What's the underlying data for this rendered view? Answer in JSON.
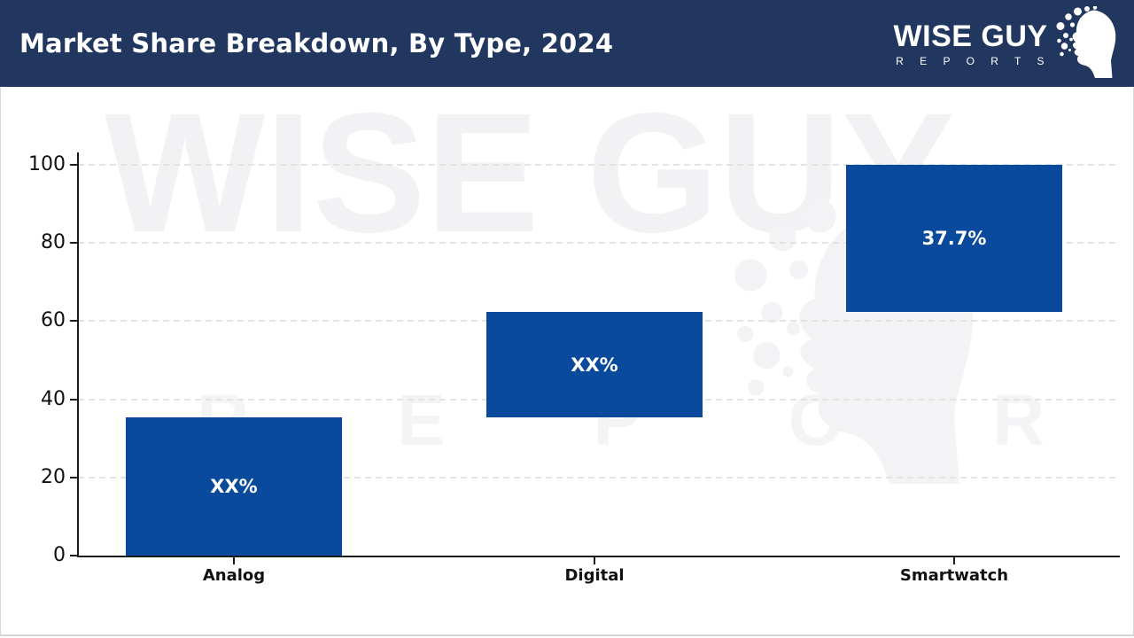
{
  "header": {
    "title": "Market Share Breakdown, By Type, 2024",
    "logo": {
      "name": "WISE GUY",
      "sub": "R E P O R T S"
    }
  },
  "watermark": {
    "name": "WISE GUY",
    "sub": "R E P O R T S"
  },
  "icons": {
    "logo_face": "face-profile-dots",
    "watermark_face": "face-profile-dots"
  },
  "chart_data": {
    "type": "bar",
    "variant": "floating-segment-waterfall",
    "title": "Market Share Breakdown, By Type, 2024",
    "categories": [
      "Analog",
      "Digital",
      "Smartwatch"
    ],
    "series": [
      {
        "name": "Market share (%)",
        "segments": [
          {
            "category": "Analog",
            "start": 0,
            "end": 35.3,
            "value_label": "XX%"
          },
          {
            "category": "Digital",
            "start": 35.3,
            "end": 62.3,
            "value_label": "XX%"
          },
          {
            "category": "Smartwatch",
            "start": 62.3,
            "end": 100,
            "value_label": "37.7%"
          }
        ]
      }
    ],
    "xlabel": "",
    "ylabel": "",
    "ylim": [
      0,
      100
    ],
    "yticks": [
      0,
      20,
      40,
      60,
      80,
      100
    ],
    "grid": "horizontal-dashed",
    "legend": "none",
    "bar_color": "#0a4a9c",
    "bar_label_color": "#ffffff"
  },
  "colors": {
    "header_bg": "#21375f",
    "bar": "#0a4a9c",
    "grid": "#e3e3e4",
    "axis": "#1a1a1a",
    "watermark": "#f2f2f4",
    "page_bg": "#ffffff",
    "frame_border": "#d6d6d6"
  }
}
